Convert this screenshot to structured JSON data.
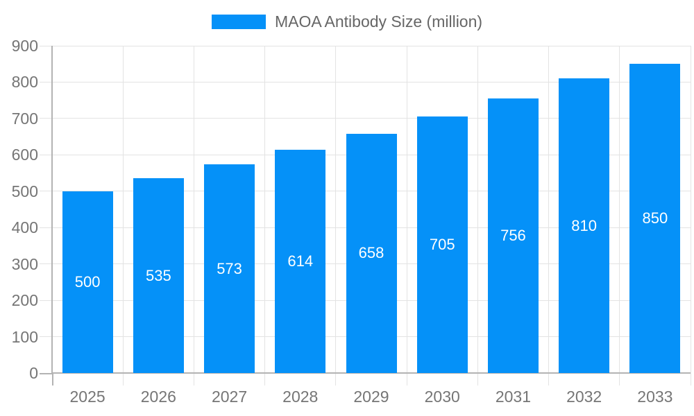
{
  "chart_data": {
    "type": "bar",
    "title": "MAOA Antibody Size (million)",
    "categories": [
      "2025",
      "2026",
      "2027",
      "2028",
      "2029",
      "2030",
      "2031",
      "2032",
      "2033"
    ],
    "series": [
      {
        "name": "MAOA Antibody Size (million)",
        "values": [
          500,
          535,
          573,
          614,
          658,
          705,
          756,
          810,
          850
        ]
      }
    ],
    "xlabel": "",
    "ylabel": "",
    "ylim": [
      0,
      900
    ],
    "yticks": [
      0,
      100,
      200,
      300,
      400,
      500,
      600,
      700,
      800,
      900
    ],
    "grid": true,
    "legend_position": "top-center",
    "bar_labels_inside": true,
    "colors": {
      "bar": "#0591f8",
      "bar_value_label": "#ffffff",
      "grid": "#e3e3e3",
      "axis": "#b3b3b3",
      "tick_label": "#757575",
      "legend_text": "#666666",
      "background": "#ffffff"
    }
  },
  "legend": {
    "label": "MAOA Antibody Size (million)"
  }
}
